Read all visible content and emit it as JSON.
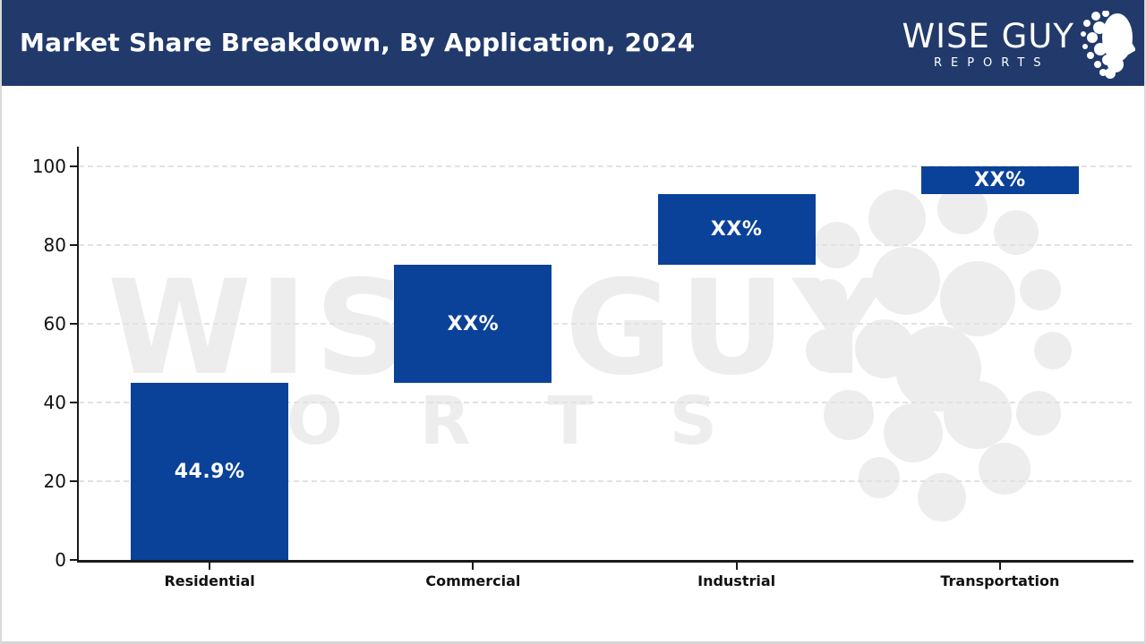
{
  "header": {
    "title": "Market Share Breakdown, By Application, 2024",
    "logo": {
      "line1": "WISE GUY",
      "line2": "REPORTS"
    }
  },
  "watermark": {
    "line1": "WISE GUY",
    "line2": "P O R T S"
  },
  "chart_data": {
    "type": "bar",
    "subtype": "waterfall",
    "title": "Market Share Breakdown, By Application, 2024",
    "categories": [
      "Residential",
      "Commercial",
      "Industrial",
      "Transportation"
    ],
    "series": [
      {
        "name": "Market share (%)",
        "segments": [
          {
            "category": "Residential",
            "start": 0,
            "end": 44.9,
            "label": "44.9%"
          },
          {
            "category": "Commercial",
            "start": 44.9,
            "end": 74.9,
            "label": "XX%"
          },
          {
            "category": "Industrial",
            "start": 74.9,
            "end": 92.9,
            "label": "XX%"
          },
          {
            "category": "Transportation",
            "start": 92.9,
            "end": 100,
            "label": "XX%"
          }
        ]
      }
    ],
    "xlabel": "",
    "ylabel": "",
    "yticks": [
      0,
      20,
      40,
      60,
      80,
      100
    ],
    "ylim": [
      0,
      105
    ],
    "grid": "horizontal-dashed",
    "legend": "none",
    "bar_color": "#0a4199"
  },
  "colors": {
    "header_bg": "#213a6b",
    "bar": "#0a4199",
    "grid": "#e2e2e2",
    "axis": "#1a1a1a",
    "watermark": "#ededed",
    "bottom_edge": "#d8d8d8"
  }
}
